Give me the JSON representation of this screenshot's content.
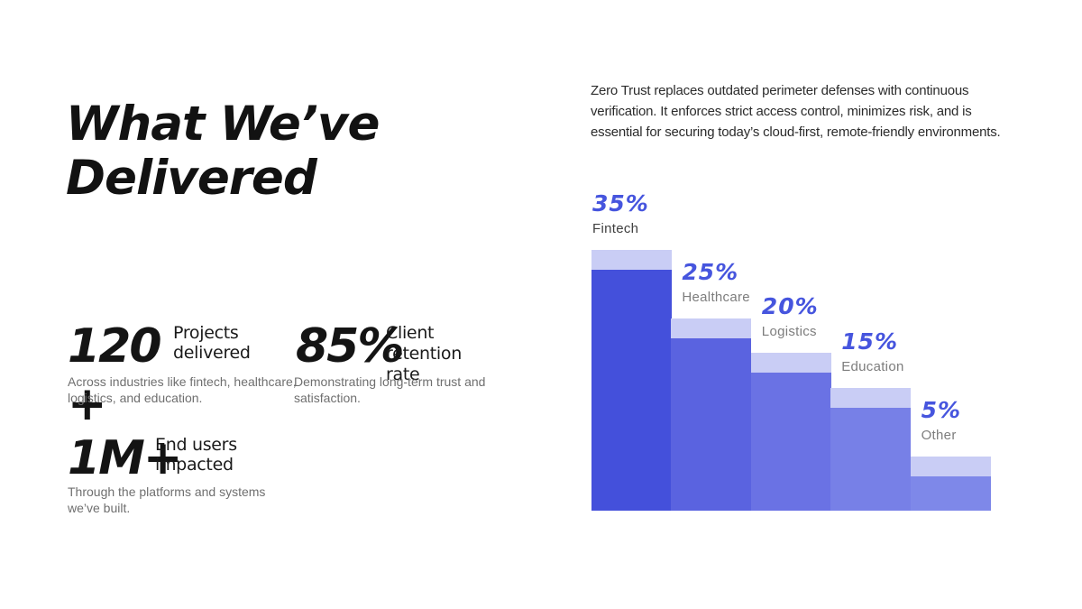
{
  "title": "What We’ve Delivered",
  "intro": "Zero Trust replaces outdated perimeter defenses with continuous verification. It enforces strict access control, minimizes risk, and is essential for securing today’s cloud-first, remote-friendly environments.",
  "stats": [
    {
      "value": "120+",
      "label": "Projects delivered",
      "description": "Across industries like fintech, healthcare, logistics, and education."
    },
    {
      "value": "85%",
      "label": "Client retention rate",
      "description": "Demonstrating long-term trust and satisfaction."
    },
    {
      "value": "1M+",
      "label": "End users impacted",
      "description": "Through the platforms and systems we’ve built."
    }
  ],
  "chart_data": {
    "type": "bar",
    "variant": "descending-step-columns",
    "title": "",
    "categories": [
      "Fintech",
      "Healthcare",
      "Logistics",
      "Education",
      "Other"
    ],
    "values": [
      35,
      25,
      20,
      15,
      5
    ],
    "unit": "%",
    "value_label_position": "above-bar",
    "axes": "none",
    "grid": false,
    "legend": "none",
    "colors": {
      "bar_bodies": [
        "#4450db",
        "#5a63e0",
        "#6a72e4",
        "#7780e7",
        "#7e88e9"
      ],
      "bar_cap": "#c9cdf5",
      "value_label": "#4655de",
      "category_label_first": "#3f3f3f",
      "category_label": "#7d7d7d"
    }
  }
}
